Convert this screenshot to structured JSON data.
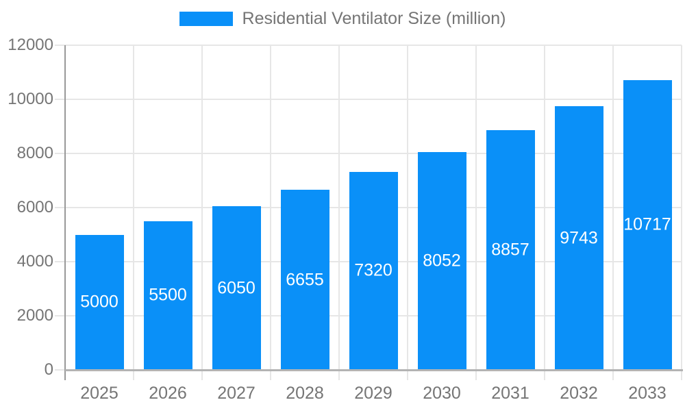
{
  "legend": {
    "label": "Residential Ventilator Size (million)"
  },
  "chart_data": {
    "type": "bar",
    "title": "Residential Ventilator Size (million)",
    "categories": [
      "2025",
      "2026",
      "2027",
      "2028",
      "2029",
      "2030",
      "2031",
      "2032",
      "2033"
    ],
    "values": [
      5000,
      5500,
      6050,
      6655,
      7320,
      8052,
      8857,
      9743,
      10717
    ],
    "xlabel": "",
    "ylabel": "",
    "ylim": [
      0,
      12000
    ],
    "ytick_step": 2000,
    "yticks": [
      0,
      2000,
      4000,
      6000,
      8000,
      10000,
      12000
    ],
    "grid": true,
    "legend_position": "top",
    "bar_labels_inside": true,
    "colors": {
      "bar": "#0a90f8",
      "bar_label": "#ffffff",
      "axis_text": "#757575",
      "grid": "#e6e6e6",
      "y_axis_line": "#999999",
      "x_axis_line": "#b3b3b3",
      "background": "#ffffff"
    }
  }
}
